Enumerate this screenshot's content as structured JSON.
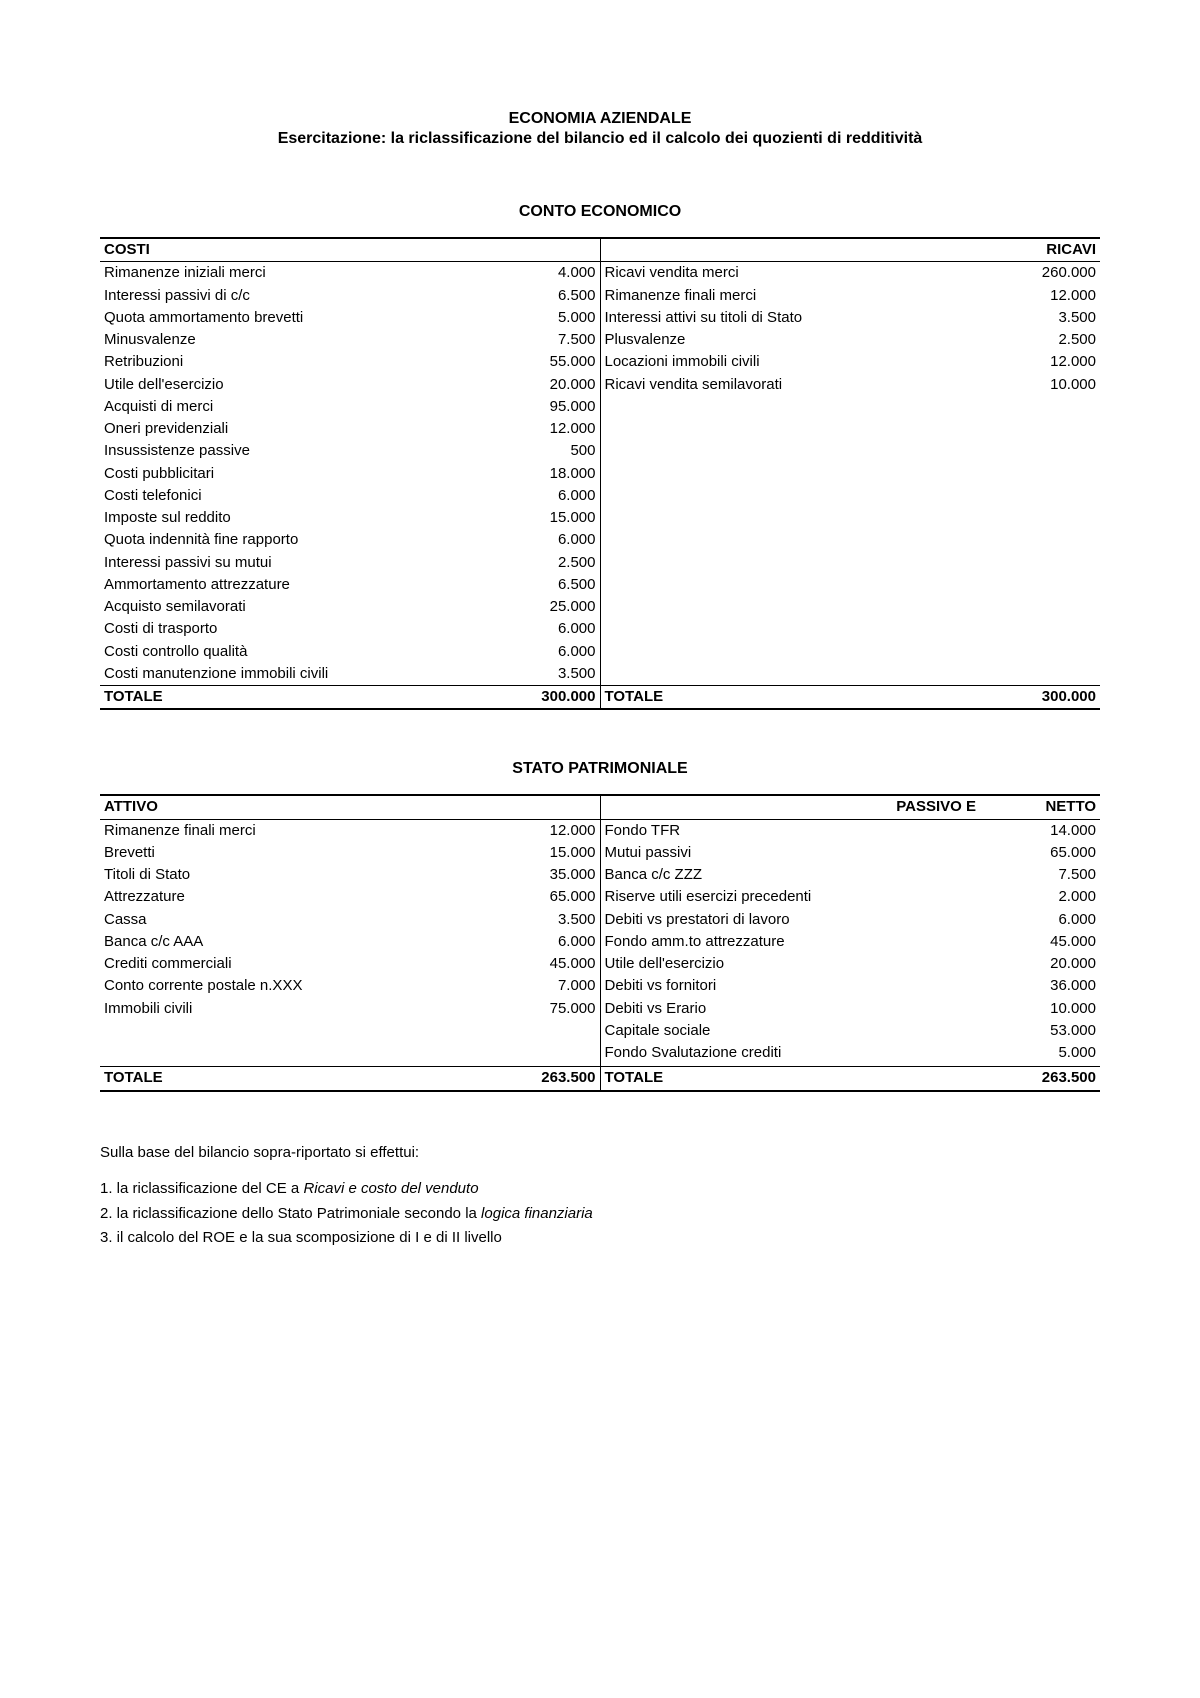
{
  "header": {
    "line1": "ECONOMIA AZIENDALE",
    "line2": "Esercitazione: la riclassificazione del bilancio ed il calcolo dei quozienti di redditività"
  },
  "contoEconomico": {
    "title": "CONTO ECONOMICO",
    "header": {
      "left": "COSTI",
      "right": "RICAVI"
    },
    "rows": [
      {
        "ll": "Rimanenze iniziali merci",
        "lv": "4.000",
        "rl": "Ricavi vendita merci",
        "rv": "260.000"
      },
      {
        "ll": "Interessi passivi di c/c",
        "lv": "6.500",
        "rl": "Rimanenze finali merci",
        "rv": "12.000"
      },
      {
        "ll": "Quota ammortamento brevetti",
        "lv": "5.000",
        "rl": "Interessi attivi su titoli di Stato",
        "rv": "3.500"
      },
      {
        "ll": "Minusvalenze",
        "lv": "7.500",
        "rl": "Plusvalenze",
        "rv": "2.500"
      },
      {
        "ll": "Retribuzioni",
        "lv": "55.000",
        "rl": "Locazioni immobili civili",
        "rv": "12.000"
      },
      {
        "ll": "Utile dell'esercizio",
        "lv": "20.000",
        "rl": "Ricavi vendita semilavorati",
        "rv": "10.000"
      },
      {
        "ll": "Acquisti di merci",
        "lv": "95.000",
        "rl": "",
        "rv": ""
      },
      {
        "ll": "Oneri previdenziali",
        "lv": "12.000",
        "rl": "",
        "rv": ""
      },
      {
        "ll": "Insussistenze passive",
        "lv": "500",
        "rl": "",
        "rv": ""
      },
      {
        "ll": "Costi pubblicitari",
        "lv": "18.000",
        "rl": "",
        "rv": ""
      },
      {
        "ll": "Costi telefonici",
        "lv": "6.000",
        "rl": "",
        "rv": ""
      },
      {
        "ll": "Imposte sul reddito",
        "lv": "15.000",
        "rl": "",
        "rv": ""
      },
      {
        "ll": "Quota indennità fine rapporto",
        "lv": "6.000",
        "rl": "",
        "rv": ""
      },
      {
        "ll": "Interessi passivi su mutui",
        "lv": "2.500",
        "rl": "",
        "rv": ""
      },
      {
        "ll": "Ammortamento attrezzature",
        "lv": "6.500",
        "rl": "",
        "rv": ""
      },
      {
        "ll": "Acquisto semilavorati",
        "lv": "25.000",
        "rl": "",
        "rv": ""
      },
      {
        "ll": "Costi di trasporto",
        "lv": "6.000",
        "rl": "",
        "rv": ""
      },
      {
        "ll": "Costi controllo qualità",
        "lv": "6.000",
        "rl": "",
        "rv": ""
      },
      {
        "ll": "Costi manutenzione immobili civili",
        "lv": "3.500",
        "rl": "",
        "rv": ""
      }
    ],
    "total": {
      "ll": "TOTALE",
      "lv": "300.000",
      "rl": "TOTALE",
      "rv": "300.000"
    }
  },
  "statoPatrimoniale": {
    "title": "STATO PATRIMONIALE",
    "header": {
      "left": "ATTIVO",
      "right1": "PASSIVO E",
      "right2": "NETTO"
    },
    "rows": [
      {
        "ll": "Rimanenze finali merci",
        "lv": "12.000",
        "rl": "Fondo TFR",
        "rv": "14.000"
      },
      {
        "ll": "Brevetti",
        "lv": "15.000",
        "rl": "Mutui passivi",
        "rv": "65.000"
      },
      {
        "ll": "Titoli di Stato",
        "lv": "35.000",
        "rl": "Banca c/c ZZZ",
        "rv": "7.500"
      },
      {
        "ll": "Attrezzature",
        "lv": "65.000",
        "rl": "Riserve utili esercizi precedenti",
        "rv": "2.000"
      },
      {
        "ll": "Cassa",
        "lv": "3.500",
        "rl": "Debiti vs prestatori di lavoro",
        "rv": "6.000"
      },
      {
        "ll": "Banca c/c AAA",
        "lv": "6.000",
        "rl": "Fondo amm.to attrezzature",
        "rv": "45.000"
      },
      {
        "ll": "Crediti commerciali",
        "lv": "45.000",
        "rl": "Utile dell'esercizio",
        "rv": "20.000"
      },
      {
        "ll": "Conto corrente postale n.XXX",
        "lv": "7.000",
        "rl": "Debiti vs fornitori",
        "rv": "36.000"
      },
      {
        "ll": "Immobili civili",
        "lv": "75.000",
        "rl": "Debiti vs Erario",
        "rv": "10.000"
      },
      {
        "ll": "",
        "lv": "",
        "rl": "Capitale sociale",
        "rv": "53.000"
      },
      {
        "ll": "",
        "lv": "",
        "rl": "Fondo Svalutazione crediti",
        "rv": "5.000"
      },
      {
        "ll": "",
        "lv": "",
        "rl": "",
        "rv": ""
      }
    ],
    "total": {
      "ll": "TOTALE",
      "lv": "263.500",
      "rl": "TOTALE",
      "rv": "263.500"
    }
  },
  "instructions": {
    "intro": "Sulla base del bilancio sopra-riportato si effettui:",
    "items": [
      {
        "pre": "1. la riclassificazione del CE a ",
        "em": "Ricavi e costo del venduto",
        "post": ""
      },
      {
        "pre": "2. la riclassificazione dello Stato Patrimoniale secondo la ",
        "em": "logica finanziaria",
        "post": ""
      },
      {
        "pre": "3. il calcolo del ROE e la sua scomposizione di I e di II livello",
        "em": "",
        "post": ""
      }
    ]
  }
}
